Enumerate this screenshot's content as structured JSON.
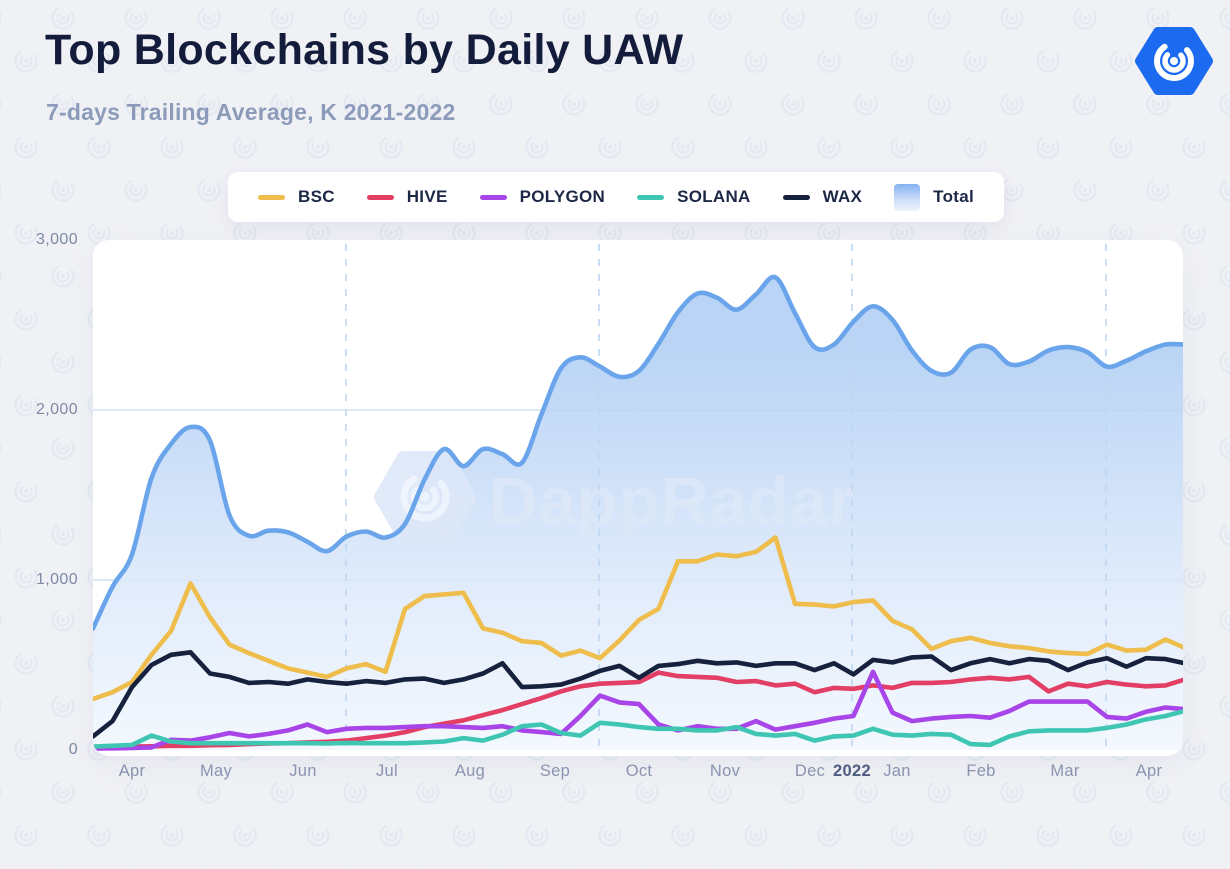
{
  "header": {
    "title": "Top Blockchains by Daily UAW",
    "subtitle": "7-days Trailing Average, K 2021-2022",
    "logo": "dappradar-hexagon-logo"
  },
  "watermark": {
    "text": "DappRadar"
  },
  "legend": {
    "items": [
      {
        "label": "BSC",
        "swatch": "line",
        "color": "#eebd4c"
      },
      {
        "label": "HIVE",
        "swatch": "line",
        "color": "#e33e63"
      },
      {
        "label": "POLYGON",
        "swatch": "line",
        "color": "#a845e8"
      },
      {
        "label": "SOLANA",
        "swatch": "line",
        "color": "#3fc6b3"
      },
      {
        "label": "WAX",
        "swatch": "line",
        "color": "#16213d"
      },
      {
        "label": "Total",
        "swatch": "area-gradient",
        "color": "#84b1f0"
      }
    ]
  },
  "chart_data": {
    "type": "area",
    "title": "Top Blockchains by Daily UAW",
    "subtitle": "7-days Trailing Average, K 2021-2022",
    "unit": "thousand daily Unique Active Wallets (K)",
    "ylim": [
      0,
      3000
    ],
    "y_ticks": [
      "3,000",
      "2,000",
      "1,000",
      "0"
    ],
    "grid": {
      "horizontal": [
        1000,
        2000
      ],
      "vertical_dashed": [
        "2021-07-01",
        "2021-10-01",
        "2022-01-01",
        "2022-04-01"
      ]
    },
    "legend_position": "top-center",
    "x_start": "2021-04-01",
    "x_step_days": 7,
    "x_month_labels": [
      {
        "text": "Apr"
      },
      {
        "text": "May"
      },
      {
        "text": "Jun"
      },
      {
        "text": "Jul"
      },
      {
        "text": "Aug"
      },
      {
        "text": "Sep"
      },
      {
        "text": "Oct"
      },
      {
        "text": "Nov"
      },
      {
        "text": "Dec"
      },
      {
        "text": "2022",
        "bold": true
      },
      {
        "text": "Jan"
      },
      {
        "text": "Feb"
      },
      {
        "text": "Mar"
      },
      {
        "text": "Apr"
      }
    ],
    "series": [
      {
        "name": "Total",
        "type": "area",
        "color": "#6aa5ec",
        "fill_gradient": [
          "#aecdf4",
          "#f3f8fe"
        ],
        "values": [
          715,
          960,
          1150,
          1600,
          1800,
          1900,
          1820,
          1380,
          1260,
          1290,
          1280,
          1225,
          1170,
          1255,
          1285,
          1250,
          1330,
          1590,
          1770,
          1670,
          1770,
          1740,
          1690,
          1975,
          2245,
          2310,
          2255,
          2195,
          2230,
          2390,
          2575,
          2685,
          2660,
          2590,
          2680,
          2780,
          2570,
          2370,
          2385,
          2520,
          2610,
          2530,
          2350,
          2230,
          2220,
          2355,
          2370,
          2270,
          2285,
          2350,
          2370,
          2340,
          2255,
          2290,
          2345,
          2385,
          2385
        ]
      },
      {
        "name": "BSC",
        "type": "line",
        "color": "#eebd4c",
        "values": [
          300,
          340,
          400,
          560,
          700,
          980,
          780,
          620,
          570,
          525,
          480,
          455,
          430,
          480,
          505,
          460,
          830,
          905,
          915,
          925,
          715,
          690,
          640,
          630,
          555,
          585,
          540,
          645,
          765,
          830,
          1110,
          1110,
          1150,
          1140,
          1165,
          1250,
          860,
          855,
          845,
          870,
          880,
          760,
          710,
          595,
          640,
          660,
          630,
          610,
          600,
          580,
          570,
          565,
          620,
          585,
          590,
          650,
          600
        ]
      },
      {
        "name": "HIVE",
        "type": "line",
        "color": "#e33e63",
        "values": [
          15,
          18,
          20,
          22,
          25,
          25,
          28,
          30,
          35,
          38,
          40,
          45,
          48,
          55,
          70,
          85,
          105,
          135,
          155,
          175,
          205,
          235,
          270,
          305,
          345,
          375,
          390,
          395,
          400,
          455,
          435,
          430,
          425,
          400,
          405,
          380,
          390,
          340,
          365,
          360,
          380,
          365,
          395,
          395,
          400,
          415,
          425,
          415,
          430,
          345,
          390,
          375,
          400,
          385,
          375,
          380,
          415
        ]
      },
      {
        "name": "POLYGON",
        "type": "line",
        "color": "#a845e8",
        "values": [
          8,
          10,
          12,
          15,
          60,
          55,
          75,
          100,
          80,
          95,
          115,
          150,
          105,
          125,
          130,
          130,
          135,
          140,
          140,
          135,
          130,
          140,
          115,
          105,
          95,
          200,
          320,
          280,
          270,
          150,
          115,
          140,
          125,
          125,
          170,
          120,
          140,
          160,
          185,
          200,
          460,
          220,
          170,
          185,
          195,
          200,
          190,
          230,
          285,
          285,
          285,
          285,
          195,
          185,
          225,
          250,
          240
        ]
      },
      {
        "name": "SOLANA",
        "type": "line",
        "color": "#3fc6b3",
        "values": [
          20,
          25,
          30,
          85,
          50,
          40,
          40,
          40,
          40,
          40,
          40,
          40,
          38,
          42,
          40,
          40,
          40,
          45,
          50,
          70,
          55,
          90,
          140,
          150,
          100,
          85,
          160,
          150,
          135,
          125,
          125,
          115,
          115,
          135,
          95,
          85,
          95,
          55,
          80,
          85,
          125,
          90,
          85,
          95,
          90,
          35,
          30,
          80,
          110,
          115,
          115,
          115,
          130,
          150,
          180,
          200,
          230
        ]
      },
      {
        "name": "WAX",
        "type": "line",
        "color": "#16213d",
        "values": [
          80,
          170,
          370,
          500,
          560,
          575,
          450,
          430,
          395,
          400,
          390,
          415,
          400,
          390,
          405,
          395,
          415,
          420,
          395,
          415,
          450,
          510,
          370,
          375,
          385,
          420,
          465,
          495,
          425,
          495,
          505,
          525,
          510,
          515,
          495,
          510,
          510,
          470,
          510,
          445,
          530,
          515,
          545,
          550,
          470,
          510,
          535,
          510,
          535,
          525,
          470,
          515,
          540,
          490,
          540,
          535,
          510
        ]
      }
    ]
  }
}
